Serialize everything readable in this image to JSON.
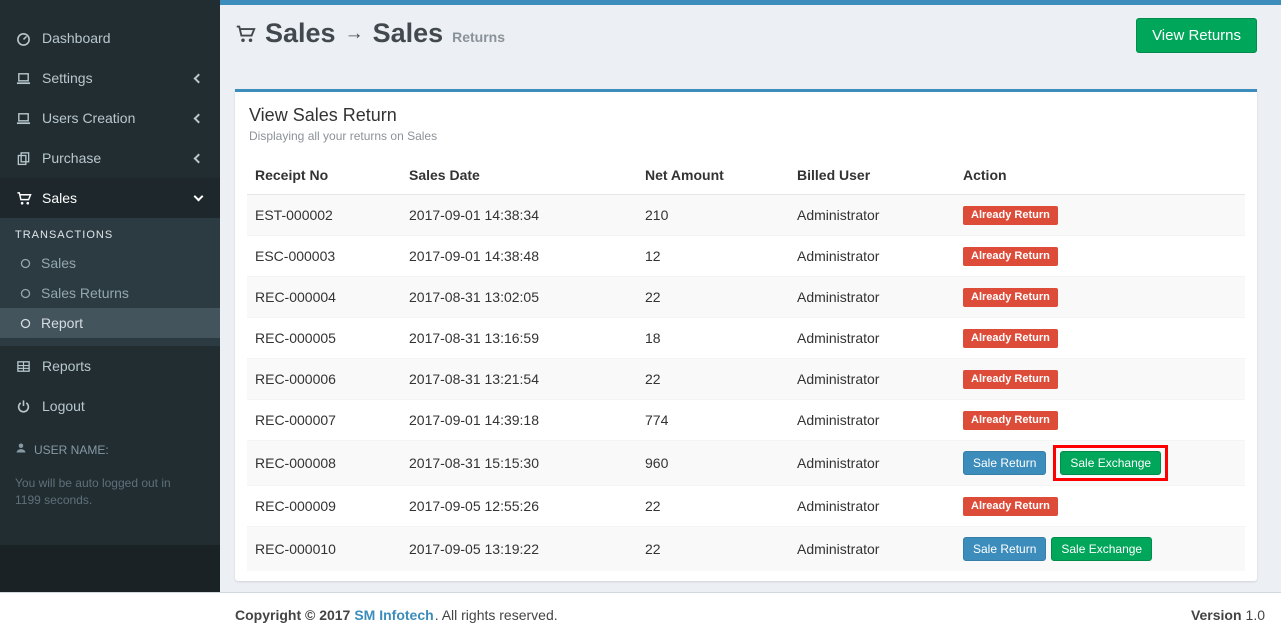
{
  "sidebar": {
    "items": [
      {
        "label": "Dashboard"
      },
      {
        "label": "Settings"
      },
      {
        "label": "Users Creation"
      },
      {
        "label": "Purchase"
      },
      {
        "label": "Sales"
      }
    ],
    "submenu_header": "TRANSACTIONS",
    "submenu": [
      {
        "label": "Sales"
      },
      {
        "label": "Sales Returns"
      },
      {
        "label": "Report"
      }
    ],
    "lower_items": [
      {
        "label": "Reports"
      },
      {
        "label": "Logout"
      }
    ],
    "user_label": "USER NAME:",
    "auto_logout_note": "You will be auto logged out in 1199 seconds."
  },
  "header": {
    "section_title": "Sales",
    "page_title": "Sales",
    "page_subtitle": "Returns",
    "button_label": "View Returns"
  },
  "icons": {
    "breadcrumb_arrow": "→"
  },
  "panel": {
    "title": "View Sales Return",
    "subtitle": "Displaying all your returns on Sales"
  },
  "table": {
    "columns": [
      "Receipt No",
      "Sales Date",
      "Net Amount",
      "Billed User",
      "Action"
    ],
    "rows": [
      {
        "receipt": "EST-000002",
        "date": "2017-09-01 14:38:34",
        "amount": "210",
        "user": "Administrator",
        "action": "already",
        "annotated": false
      },
      {
        "receipt": "ESC-000003",
        "date": "2017-09-01 14:38:48",
        "amount": "12",
        "user": "Administrator",
        "action": "already",
        "annotated": false
      },
      {
        "receipt": "REC-000004",
        "date": "2017-08-31 13:02:05",
        "amount": "22",
        "user": "Administrator",
        "action": "already",
        "annotated": false
      },
      {
        "receipt": "REC-000005",
        "date": "2017-08-31 13:16:59",
        "amount": "18",
        "user": "Administrator",
        "action": "already",
        "annotated": false
      },
      {
        "receipt": "REC-000006",
        "date": "2017-08-31 13:21:54",
        "amount": "22",
        "user": "Administrator",
        "action": "already",
        "annotated": false
      },
      {
        "receipt": "REC-000007",
        "date": "2017-09-01 14:39:18",
        "amount": "774",
        "user": "Administrator",
        "action": "already",
        "annotated": false
      },
      {
        "receipt": "REC-000008",
        "date": "2017-08-31 15:15:30",
        "amount": "960",
        "user": "Administrator",
        "action": "both",
        "annotated": true
      },
      {
        "receipt": "REC-000009",
        "date": "2017-09-05 12:55:26",
        "amount": "22",
        "user": "Administrator",
        "action": "already",
        "annotated": false
      },
      {
        "receipt": "REC-000010",
        "date": "2017-09-05 13:19:22",
        "amount": "22",
        "user": "Administrator",
        "action": "both",
        "annotated": false
      }
    ]
  },
  "labels": {
    "already_return": "Already Return",
    "sale_return": "Sale Return",
    "sale_exchange": "Sale Exchange"
  },
  "footer": {
    "copyright": "Copyright © 2017",
    "company": "SM Infotech",
    "suffix": ". All rights reserved.",
    "version_label": "Version",
    "version_value": "1.0"
  },
  "colors": {
    "accent_blue": "#3c8dbc",
    "success_green": "#00a65a",
    "danger_red": "#dd4b39",
    "annotation_red": "#ff0000",
    "sidebar_bg": "#222d32",
    "sidebar_submenu_bg": "#2c3b41"
  }
}
